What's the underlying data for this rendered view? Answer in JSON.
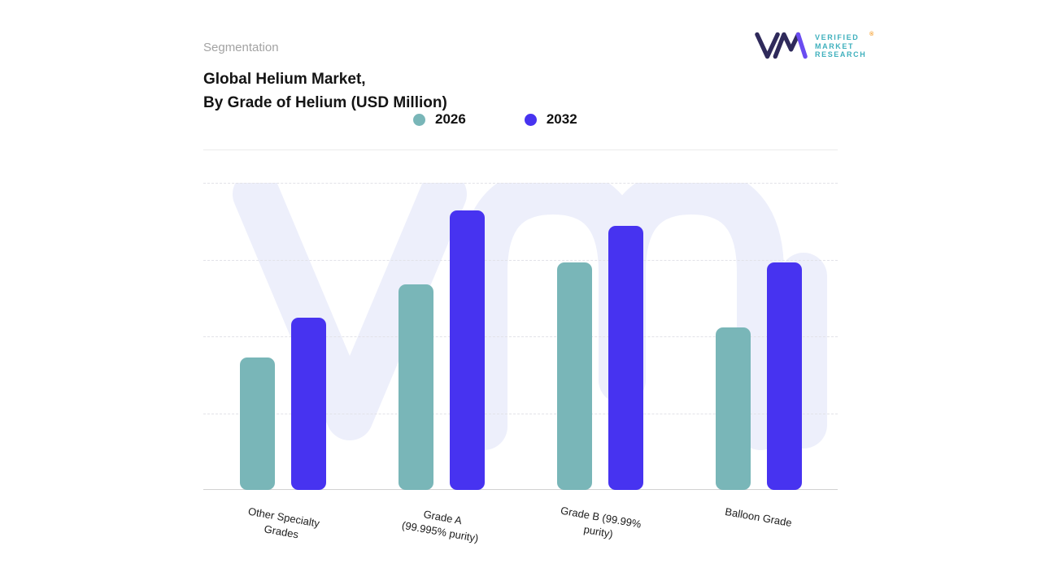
{
  "page": {
    "section_label": "Segmentation",
    "title_line1": "Global Helium Market,",
    "title_line2": "By Grade of Helium (USD Million)"
  },
  "logo": {
    "lines": [
      "VERIFIED",
      "MARKET",
      "RESEARCH"
    ],
    "registered_mark": "®",
    "monogram_navy": "#2f2a5b",
    "monogram_purple": "#6a4cf1"
  },
  "chart_data": {
    "type": "bar",
    "title": "Global Helium Market, By Grade of Helium (USD Million)",
    "categories": [
      "Other Specialty\nGrades",
      "Grade A\n(99.995% purity)",
      "Grade B (99.99%\npurity)",
      "Balloon Grade"
    ],
    "series": [
      {
        "name": "2026",
        "color": "#79b6b8",
        "values": [
          43,
          67,
          74,
          53
        ]
      },
      {
        "name": "2032",
        "color": "#4733f0",
        "values": [
          56,
          91,
          86,
          74
        ]
      }
    ],
    "xlabel": "",
    "ylabel": "",
    "ylim": [
      0,
      100
    ],
    "axis_value_labels_visible": false,
    "values_are_relative_estimates": true,
    "grid": "dashed-horizontal",
    "legend_position": "top-center",
    "label_rotation_deg": 10,
    "watermark_color": "#edeffb"
  }
}
